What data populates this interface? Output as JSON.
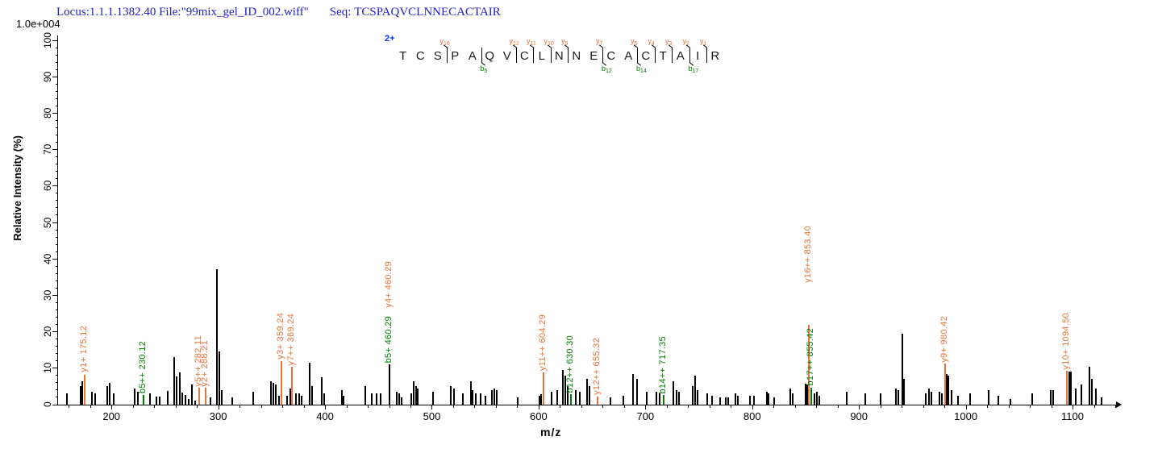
{
  "header": {
    "locus_file": "Locus:1.1.1.1382.40 File:\"99mix_gel_ID_002.wiff\"",
    "seq_label": "Seq:",
    "seq_value": "TCSPAQVCLNNECACTAIR"
  },
  "scale_label": "1.0e+004",
  "precursor_charge": "2+",
  "colors": {
    "header_blue": "#2222cc",
    "charge_blue": "#0033ff",
    "y_ion": "#e8743a",
    "b_ion": "#007f00",
    "peak_black": "#000000"
  },
  "y_axis": {
    "title": "Relative  Intensity (%)",
    "majors": [
      0,
      10,
      20,
      30,
      40,
      50,
      60,
      70,
      80,
      90,
      100
    ],
    "minor_step": 2
  },
  "x_axis": {
    "title": "m/z",
    "majors": [
      200,
      300,
      400,
      500,
      600,
      700,
      800,
      900,
      1000,
      1100
    ],
    "minor_step": 20,
    "minor_start": 160,
    "minor_end": 1140
  },
  "peptide": {
    "sequence": "TCSPAQVCLNNECACTAIR",
    "residues": [
      {
        "aa": "T"
      },
      {
        "aa": "C"
      },
      {
        "aa": "S"
      },
      {
        "aa": "P",
        "y": "16"
      },
      {
        "aa": "A"
      },
      {
        "aa": "Q",
        "b": "5"
      },
      {
        "aa": "V"
      },
      {
        "aa": "C",
        "y": "12"
      },
      {
        "aa": "L",
        "y": "11"
      },
      {
        "aa": "N",
        "y": "10"
      },
      {
        "aa": "N",
        "y": "9"
      },
      {
        "aa": "E"
      },
      {
        "aa": "C",
        "y": "7",
        "b": "12"
      },
      {
        "aa": "A"
      },
      {
        "aa": "C",
        "y": "5",
        "b": "14"
      },
      {
        "aa": "T",
        "y": "4"
      },
      {
        "aa": "A",
        "y": "3"
      },
      {
        "aa": "I",
        "y": "2",
        "b": "17"
      },
      {
        "aa": "R",
        "y": "1"
      }
    ]
  },
  "chart_data": {
    "type": "bar",
    "subtype": "ms2_centroid_spectrum",
    "xlabel": "m/z",
    "ylabel": "Relative  Intensity (%)",
    "intensity_scale": "1.0e+004",
    "x_range": [
      150,
      1140
    ],
    "y_range": [
      0,
      100
    ],
    "annotated_peaks": [
      {
        "mz": 175.12,
        "intensity": 8.2,
        "line_color": "y",
        "label": "y1+ 175.12",
        "label_color": "y",
        "label_bottom_pct": 8.8
      },
      {
        "mz": 230.12,
        "intensity": 2.6,
        "line_color": "b",
        "label": "b5++ 230.12",
        "label_color": "b",
        "label_bottom_pct": 3.0
      },
      {
        "mz": 282.11,
        "intensity": 4.6,
        "line_color": "y",
        "label": "y5++ 282.11",
        "label_color": "y",
        "label_bottom_pct": 5.0
      },
      {
        "mz": 288.21,
        "intensity": 4.6,
        "line_color": "y",
        "label": "y2+ 288.21",
        "label_color": "y",
        "label_bottom_pct": 5.0
      },
      {
        "mz": 359.24,
        "intensity": 12.0,
        "line_color": "y",
        "label": "y3+ 359.24",
        "label_color": "y",
        "label_bottom_pct": 12.4
      },
      {
        "mz": 369.24,
        "intensity": 10.4,
        "line_color": "y",
        "label": "y7++ 369.24",
        "label_color": "y",
        "label_bottom_pct": 10.8
      },
      {
        "mz": 460.29,
        "intensity": 11.0,
        "line_color": "k",
        "label": "b5+ 460.29",
        "label_color": "b",
        "label_bottom_pct": 11.5
      },
      {
        "mz": 460.29,
        "intensity": 0,
        "line_color": null,
        "label": "y4+ 460.29",
        "label_color": "y",
        "label_bottom_pct": 26.5
      },
      {
        "mz": 604.29,
        "intensity": 8.8,
        "line_color": "y",
        "label": "y11++ 604.29",
        "label_color": "y",
        "label_bottom_pct": 9.2
      },
      {
        "mz": 630.3,
        "intensity": 2.8,
        "line_color": "b",
        "label": "b12++ 630.30",
        "label_color": "b",
        "label_bottom_pct": 3.2
      },
      {
        "mz": 655.32,
        "intensity": 2.2,
        "line_color": "y",
        "label": "y12++ 655.32",
        "label_color": "y",
        "label_bottom_pct": 2.6
      },
      {
        "mz": 717.35,
        "intensity": 2.6,
        "line_color": "b",
        "label": "b14++ 717.35",
        "label_color": "b",
        "label_bottom_pct": 3.0
      },
      {
        "mz": 853.4,
        "intensity": 22.0,
        "line_color": "y",
        "label": "y16++ 853.40",
        "label_color": "y",
        "label_bottom_pct": 33.5
      },
      {
        "mz": 855.42,
        "intensity": 4.6,
        "line_color": "b",
        "label": "b17++ 855.42",
        "label_color": "b",
        "label_bottom_pct": 5.2
      },
      {
        "mz": 980.42,
        "intensity": 11.2,
        "line_color": "y",
        "label": "y9+ 980.42",
        "label_color": "y",
        "label_bottom_pct": 11.6
      },
      {
        "mz": 1094.5,
        "intensity": 9.3,
        "line_color": "y",
        "label": "y10+ 1094.50",
        "label_color": "y",
        "label_bottom_pct": 9.7
      }
    ],
    "peaks": [
      [
        158,
        3
      ],
      [
        171,
        5
      ],
      [
        173,
        6.5
      ],
      [
        182,
        3.5
      ],
      [
        184.7,
        3
      ],
      [
        196,
        5
      ],
      [
        198.5,
        6
      ],
      [
        202,
        3
      ],
      [
        222,
        4.5
      ],
      [
        224.5,
        3.5
      ],
      [
        236,
        3
      ],
      [
        242.5,
        2.2
      ],
      [
        245,
        2.2
      ],
      [
        252.5,
        3.7
      ],
      [
        259,
        13
      ],
      [
        261,
        7.7
      ],
      [
        263.9,
        8.8
      ],
      [
        266.5,
        3.3
      ],
      [
        269,
        2.6
      ],
      [
        272.7,
        1.5
      ],
      [
        275,
        5.5
      ],
      [
        278,
        1.2
      ],
      [
        292.8,
        2
      ],
      [
        299,
        37.2
      ],
      [
        300.8,
        14.7
      ],
      [
        303,
        4
      ],
      [
        313,
        2
      ],
      [
        333,
        3.5
      ],
      [
        349,
        6.5
      ],
      [
        351.5,
        6
      ],
      [
        354,
        5.5
      ],
      [
        357,
        2.5
      ],
      [
        364.8,
        2.5
      ],
      [
        367.5,
        4.5
      ],
      [
        373,
        3
      ],
      [
        375.5,
        3
      ],
      [
        378,
        2.5
      ],
      [
        385.5,
        11.5
      ],
      [
        388,
        5
      ],
      [
        397,
        7.5
      ],
      [
        399.5,
        3
      ],
      [
        415.5,
        4
      ],
      [
        417.5,
        2.5
      ],
      [
        437.5,
        5
      ],
      [
        444,
        3
      ],
      [
        448,
        3
      ],
      [
        452,
        3
      ],
      [
        467,
        3.5
      ],
      [
        469.5,
        3
      ],
      [
        471.5,
        2
      ],
      [
        480.5,
        3
      ],
      [
        483,
        6.5
      ],
      [
        485,
        5
      ],
      [
        487,
        4.5
      ],
      [
        501.5,
        3.5
      ],
      [
        518,
        5
      ],
      [
        520.5,
        4.5
      ],
      [
        529,
        3
      ],
      [
        536.5,
        6.5
      ],
      [
        538.5,
        4
      ],
      [
        541,
        3
      ],
      [
        545.5,
        3
      ],
      [
        550,
        2.5
      ],
      [
        556,
        4
      ],
      [
        558.5,
        4.5
      ],
      [
        561,
        4
      ],
      [
        580.5,
        2
      ],
      [
        600.5,
        2.5
      ],
      [
        602,
        2.8
      ],
      [
        612,
        3.5
      ],
      [
        617.5,
        4
      ],
      [
        623,
        9.5
      ],
      [
        624.8,
        8
      ],
      [
        627,
        5
      ],
      [
        634.5,
        4
      ],
      [
        638.5,
        3.5
      ],
      [
        645,
        7
      ],
      [
        647.5,
        5
      ],
      [
        667.5,
        2
      ],
      [
        679,
        2.5
      ],
      [
        688.5,
        8.5
      ],
      [
        692,
        7
      ],
      [
        701,
        3.5
      ],
      [
        710.5,
        3.5
      ],
      [
        713.5,
        3
      ],
      [
        726,
        6.5
      ],
      [
        729,
        4
      ],
      [
        731.5,
        3.5
      ],
      [
        744,
        5
      ],
      [
        746.5,
        8
      ],
      [
        749,
        4
      ],
      [
        758,
        3
      ],
      [
        762.5,
        2.5
      ],
      [
        770,
        2
      ],
      [
        775.5,
        2
      ],
      [
        777.5,
        2
      ],
      [
        784,
        3
      ],
      [
        786.5,
        2.5
      ],
      [
        798,
        2.5
      ],
      [
        801.5,
        2.5
      ],
      [
        813.5,
        3.5
      ],
      [
        815.5,
        3
      ],
      [
        820.5,
        2
      ],
      [
        836,
        4.5
      ],
      [
        838,
        3
      ],
      [
        850,
        5.8
      ],
      [
        851.7,
        5.5
      ],
      [
        858,
        3
      ],
      [
        860.5,
        3.5
      ],
      [
        863,
        2.5
      ],
      [
        888.5,
        3.5
      ],
      [
        906,
        3
      ],
      [
        920,
        3
      ],
      [
        934.5,
        4.5
      ],
      [
        936.5,
        4
      ],
      [
        940.8,
        19.5
      ],
      [
        942.5,
        7
      ],
      [
        962.5,
        3
      ],
      [
        965.5,
        4.5
      ],
      [
        967.5,
        3.5
      ],
      [
        975.5,
        3.5
      ],
      [
        977.5,
        3
      ],
      [
        982,
        8.5
      ],
      [
        984,
        8
      ],
      [
        986.5,
        4
      ],
      [
        992.5,
        2.5
      ],
      [
        1004,
        3
      ],
      [
        1021.8,
        4
      ],
      [
        1030.5,
        2.5
      ],
      [
        1041.5,
        1.5
      ],
      [
        1062,
        3
      ],
      [
        1079.5,
        4
      ],
      [
        1082,
        4
      ],
      [
        1097,
        9
      ],
      [
        1098.8,
        9
      ],
      [
        1103,
        4.5
      ],
      [
        1108.5,
        5.5
      ],
      [
        1116,
        10.5
      ],
      [
        1118,
        7
      ],
      [
        1122,
        4.5
      ],
      [
        1127.5,
        2
      ]
    ]
  }
}
